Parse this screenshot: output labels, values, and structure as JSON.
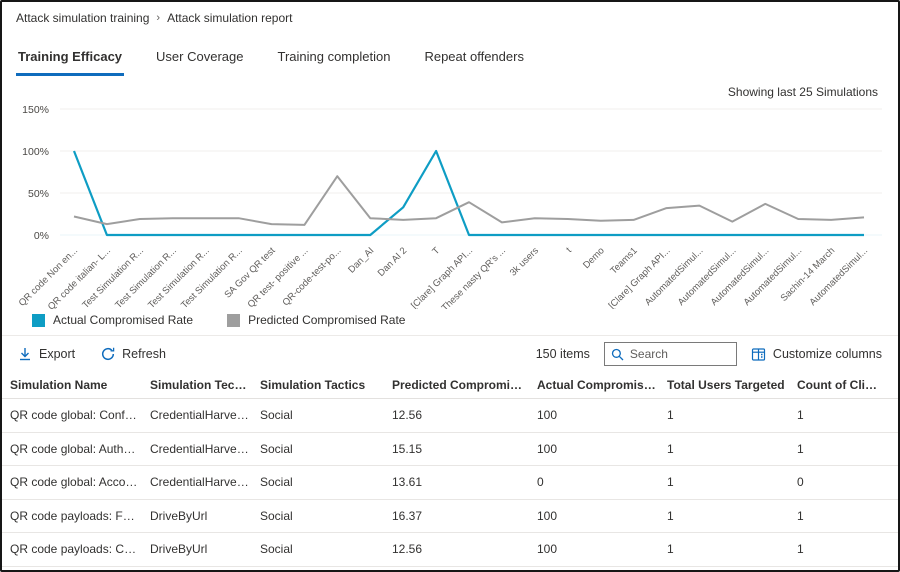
{
  "breadcrumb": {
    "items": [
      "Attack simulation training",
      "Attack simulation report"
    ],
    "separator": "›"
  },
  "tabs": [
    {
      "label": "Training Efficacy",
      "active": true
    },
    {
      "label": "User Coverage",
      "active": false
    },
    {
      "label": "Training completion",
      "active": false
    },
    {
      "label": "Repeat offenders",
      "active": false
    }
  ],
  "chart_data": {
    "type": "line",
    "title": "",
    "caption": "Showing last 25 Simulations",
    "xlabel": "",
    "ylabel": "",
    "ylim": [
      0,
      150
    ],
    "grid": true,
    "legend_position": "bottom",
    "ytick_labels": [
      "150%",
      "100%",
      "50%",
      "0%"
    ],
    "categories": [
      "QR code Non en...",
      "QR code italian- L...",
      "Test Simulation R...",
      "Test Simulation R...",
      "Test Simulation R...",
      "Test Simulation R...",
      "SA Gov QR test",
      "QR test- positive ...",
      "QR-code-test-po...",
      "Dan_AI",
      "Dan AI 2",
      "T",
      "[Clare] Graph API...",
      "These nasty QR's ...",
      "3k users",
      "t",
      "Demo",
      "Teams1",
      "[Clare] Graph API...",
      "AutomatedSimul...",
      "AutomatedSimul...",
      "AutomatedSimul...",
      "AutomatedSimul...",
      "Sachin-14 March",
      "AutomatedSimul..."
    ],
    "series": [
      {
        "name": "Actual Compromised Rate",
        "color": "#0e9dc4",
        "values": [
          100,
          0,
          0,
          0,
          0,
          0,
          0,
          0,
          0,
          0,
          33,
          100,
          0,
          0,
          0,
          0,
          0,
          0,
          0,
          0,
          0,
          0,
          0,
          0,
          0
        ]
      },
      {
        "name": "Predicted Compromised Rate",
        "color": "#9e9e9e",
        "values": [
          22,
          13,
          19,
          20,
          20,
          20,
          13,
          12,
          70,
          20,
          18,
          20,
          39,
          15,
          20,
          19,
          17,
          18,
          32,
          35,
          16,
          37,
          19,
          18,
          21
        ]
      }
    ]
  },
  "toolbar": {
    "export_label": "Export",
    "refresh_label": "Refresh",
    "items_count": "150 items",
    "search_placeholder": "Search",
    "customize_label": "Customize columns"
  },
  "table": {
    "columns": [
      "Simulation Name",
      "Simulation Technique",
      "Simulation Tactics",
      "Predicted Compromised Rate",
      "Actual Compromised Rate",
      "Total Users Targeted",
      "Count of Clicked Users"
    ],
    "rows": [
      [
        "QR code global: Conferenc...",
        "CredentialHarvesting",
        "Social",
        "12.56",
        "100",
        "1",
        "1"
      ],
      [
        "QR code global: Authentic...",
        "CredentialHarvesting",
        "Social",
        "15.15",
        "100",
        "1",
        "1"
      ],
      [
        "QR code global: Account S...",
        "CredentialHarvesting",
        "Social",
        "13.61",
        "0",
        "1",
        "0"
      ],
      [
        "QR code payloads: False Ch...",
        "DriveByUrl",
        "Social",
        "16.37",
        "100",
        "1",
        "1"
      ],
      [
        "QR code payloads: Confere...",
        "DriveByUrl",
        "Social",
        "12.56",
        "100",
        "1",
        "1"
      ]
    ]
  },
  "colors": {
    "accent": "#0f6cbd",
    "actual_line": "#0e9dc4",
    "predicted_line": "#9e9e9e"
  }
}
